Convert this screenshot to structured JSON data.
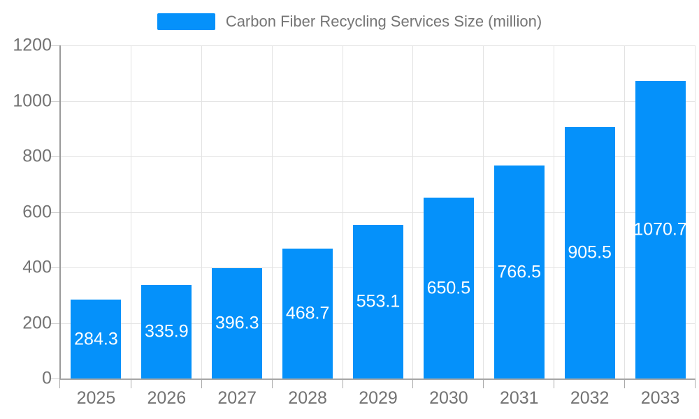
{
  "chart_data": {
    "type": "bar",
    "title": "Carbon Fiber Recycling Services Size (million)",
    "legend": {
      "label": "Carbon Fiber Recycling Services Size (million)",
      "position": "top-center"
    },
    "categories": [
      "2025",
      "2026",
      "2027",
      "2028",
      "2029",
      "2030",
      "2031",
      "2032",
      "2033"
    ],
    "values": [
      284.3,
      335.9,
      396.3,
      468.7,
      553.1,
      650.5,
      766.5,
      905.5,
      1070.7
    ],
    "value_labels": [
      "284.3",
      "335.9",
      "396.3",
      "468.7",
      "553.1",
      "650.5",
      "766.5",
      "905.5",
      "1070.7"
    ],
    "xlabel": "",
    "ylabel": "",
    "ylim": [
      0,
      1200
    ],
    "ytick_interval": 200,
    "ytick_labels": [
      "0",
      "200",
      "400",
      "600",
      "800",
      "1000",
      "1200"
    ],
    "grid": "on",
    "colors": {
      "bar": "#0591fa",
      "bar_value_text": "#ffffff",
      "axis_text": "#737373",
      "legend_text": "#757575",
      "gridline": "#e3e3e3",
      "axis_line": "#9a9a9a"
    }
  }
}
